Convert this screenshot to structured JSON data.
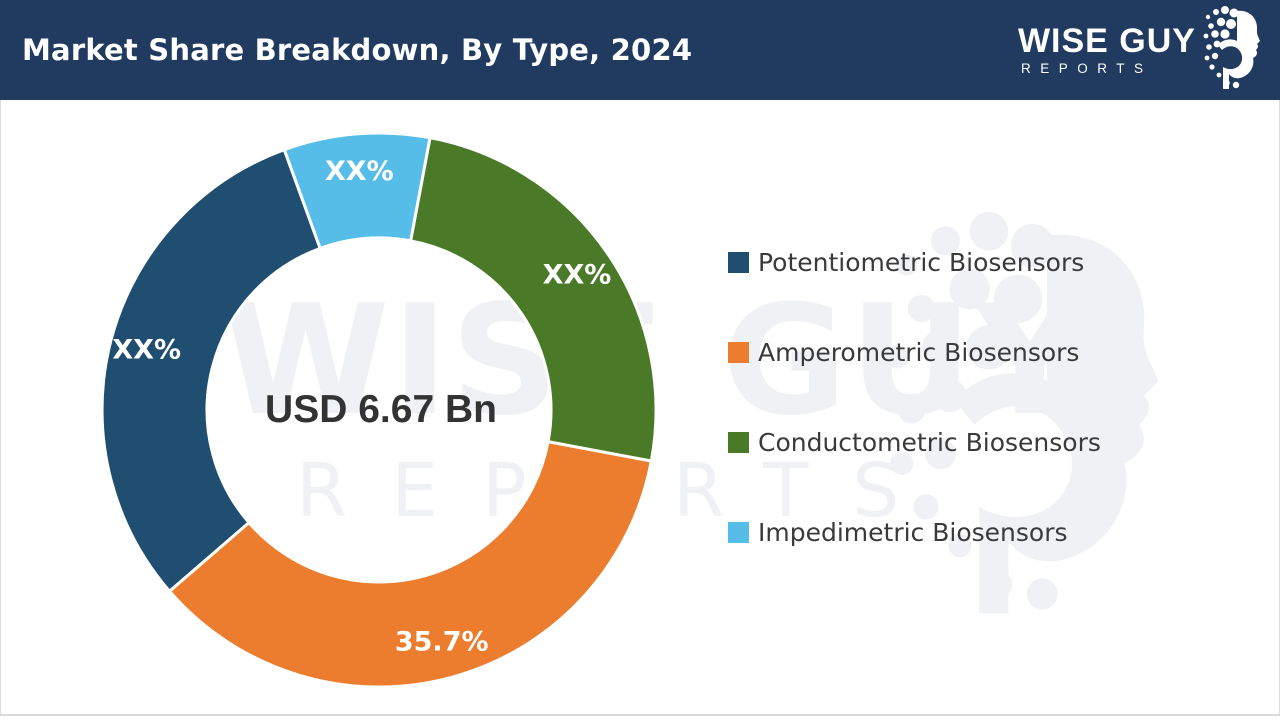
{
  "header": {
    "title": "Market Share Breakdown, By Type, 2024",
    "background_color": "#213A5F"
  },
  "logo": {
    "line1": "WISE GUY",
    "line2": "REPORTS"
  },
  "watermark": {
    "line1": "WISE GUY",
    "line2": "REPORTS"
  },
  "chart_data": {
    "type": "pie",
    "subtype": "donut",
    "title": "Market Share Breakdown, By Type, 2024",
    "center_label": "USD 6.67 Bn",
    "legend_position": "right",
    "values_unit": "percent share (only Amperometric labeled; others masked as XX%)",
    "start_angle_deg": -20,
    "direction": "counterclockwise",
    "series": [
      {
        "name": "Potentiometric Biosensors",
        "color": "#1F4E70",
        "value": 30.8,
        "display_label": "XX%"
      },
      {
        "name": "Amperometric Biosensors",
        "color": "#EC7D2E",
        "value": 35.7,
        "display_label": "35.7%"
      },
      {
        "name": "Conductometric Biosensors",
        "color": "#4A7A28",
        "value": 25.0,
        "display_label": "XX%"
      },
      {
        "name": "Impedimetric Biosensors",
        "color": "#55BDE8",
        "value": 8.5,
        "display_label": "XX%"
      }
    ]
  }
}
